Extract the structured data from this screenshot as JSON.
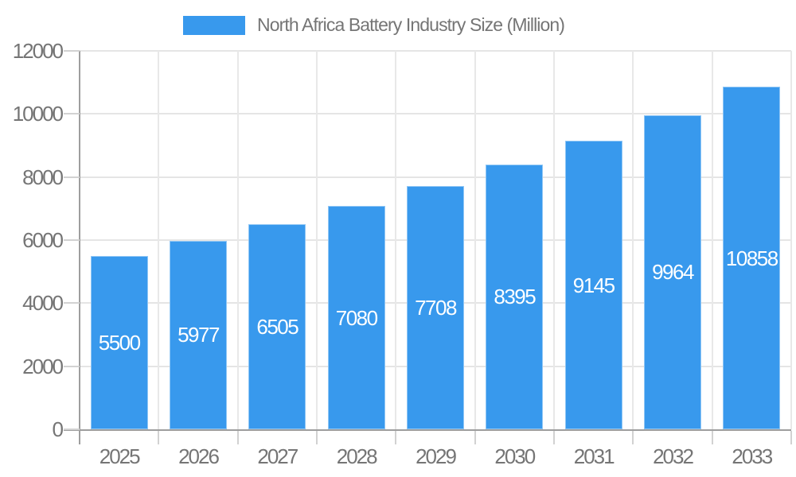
{
  "chart_data": {
    "type": "bar",
    "title": "North Africa Battery Industry Size (Million)",
    "legend_entries": [
      "North Africa Battery Industry Size (Million)"
    ],
    "legend_position": "top",
    "categories": [
      "2025",
      "2026",
      "2027",
      "2028",
      "2029",
      "2030",
      "2031",
      "2032",
      "2033"
    ],
    "values": [
      5500,
      5977,
      6505,
      7080,
      7708,
      8395,
      9145,
      9964,
      10858
    ],
    "value_labels_shown": true,
    "xlabel": "",
    "ylabel": "",
    "ylim": [
      0,
      12000
    ],
    "yticks": [
      0,
      2000,
      4000,
      6000,
      8000,
      10000,
      12000
    ],
    "grid": true,
    "colors": {
      "bar": "#3899ed",
      "value_label": "#ffffff",
      "axis_text": "#757575",
      "axis_line": "#9e9e9e",
      "gridline": "#e5e5e5",
      "background": "#ffffff"
    }
  }
}
